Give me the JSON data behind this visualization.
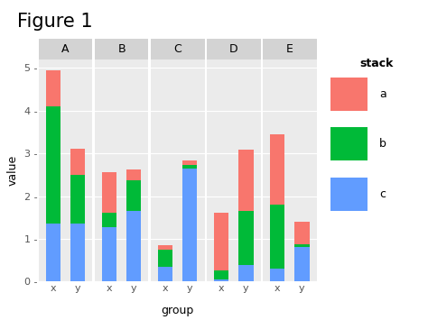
{
  "title": "Figure 1",
  "xlabel": "group",
  "ylabel": "value",
  "legend_title": "stack",
  "legend_labels": [
    "a",
    "b",
    "c"
  ],
  "colors": {
    "a": "#F8766D",
    "b": "#00BA38",
    "c": "#619CFF"
  },
  "facets": [
    "A",
    "B",
    "C",
    "D",
    "E"
  ],
  "groups": [
    "x",
    "y"
  ],
  "data": {
    "A": {
      "x": {
        "c": 1.35,
        "b": 2.75,
        "a": 0.85
      },
      "y": {
        "c": 1.35,
        "b": 1.15,
        "a": 0.6
      }
    },
    "B": {
      "x": {
        "c": 1.28,
        "b": 0.33,
        "a": 0.95
      },
      "y": {
        "c": 1.65,
        "b": 0.72,
        "a": 0.26
      }
    },
    "C": {
      "x": {
        "c": 0.35,
        "b": 0.4,
        "a": 0.1
      },
      "y": {
        "c": 2.65,
        "b": 0.08,
        "a": 0.1
      }
    },
    "D": {
      "x": {
        "c": 0.05,
        "b": 0.22,
        "a": 1.33
      },
      "y": {
        "c": 0.38,
        "b": 1.28,
        "a": 1.43
      }
    },
    "E": {
      "x": {
        "c": 0.3,
        "b": 1.5,
        "a": 1.65
      },
      "y": {
        "c": 0.8,
        "b": 0.07,
        "a": 0.53
      }
    }
  },
  "ylim": [
    0,
    5.2
  ],
  "yticks": [
    0,
    1,
    2,
    3,
    4,
    5
  ],
  "background_color": "#EBEBEB",
  "facet_label_bg": "#D3D3D3",
  "fig_bg": "#FFFFFF",
  "grid_color": "#FFFFFF",
  "bar_width": 0.6,
  "title_fontsize": 15,
  "axis_fontsize": 8,
  "label_fontsize": 9
}
